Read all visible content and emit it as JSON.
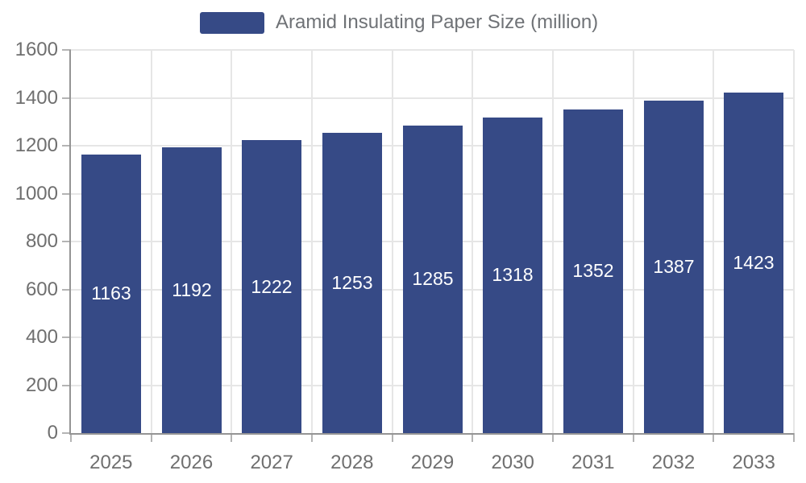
{
  "legend": {
    "label": "Aramid Insulating Paper Size (million)",
    "swatch_color": "#364A86"
  },
  "chart_data": {
    "type": "bar",
    "title": "Aramid Insulating Paper Size (million)",
    "categories": [
      "2025",
      "2026",
      "2027",
      "2028",
      "2029",
      "2030",
      "2031",
      "2032",
      "2033"
    ],
    "values": [
      1163,
      1192,
      1222,
      1253,
      1285,
      1318,
      1352,
      1387,
      1423
    ],
    "xlabel": "",
    "ylabel": "",
    "ylim": [
      0,
      1600
    ],
    "ytick_step": 200,
    "y_tick_labels": [
      "0",
      "200",
      "400",
      "600",
      "800",
      "1000",
      "1200",
      "1400",
      "1600"
    ],
    "grid": true,
    "legend_position": "top",
    "bar_color": "#364A86",
    "value_label_color": "#ffffff",
    "axis_text_color": "#6f6f6f"
  }
}
